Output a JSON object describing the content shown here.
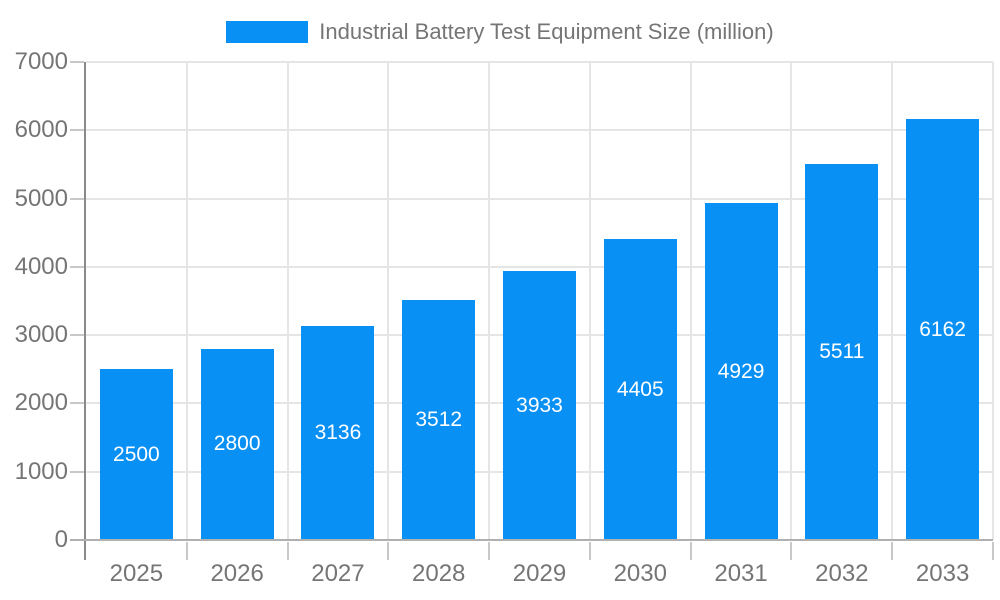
{
  "legend": {
    "label": "Industrial Battery Test Equipment Size (million)"
  },
  "chart_data": {
    "type": "bar",
    "title": "Industrial Battery Test Equipment Size (million)",
    "categories": [
      "2025",
      "2026",
      "2027",
      "2028",
      "2029",
      "2030",
      "2031",
      "2032",
      "2033"
    ],
    "values": [
      2500,
      2800,
      3136,
      3512,
      3933,
      4405,
      4929,
      5511,
      6162
    ],
    "xlabel": "",
    "ylabel": "",
    "ylim": [
      0,
      7000
    ],
    "ytick_step": 1000,
    "ytick_labels": [
      "0",
      "1000",
      "2000",
      "3000",
      "4000",
      "5000",
      "6000",
      "7000"
    ],
    "grid": true,
    "legend_position": "top-center",
    "bar_color": "#0990f5",
    "value_label_color": "#ffffff",
    "axis_text_color": "#757575",
    "gridline_color": "#e5e5e5",
    "tick_color": "#c8c8c8",
    "axis_line_color": "#8a8a8a",
    "baseline_color": "#b0b0b0",
    "background_color": "#ffffff"
  }
}
